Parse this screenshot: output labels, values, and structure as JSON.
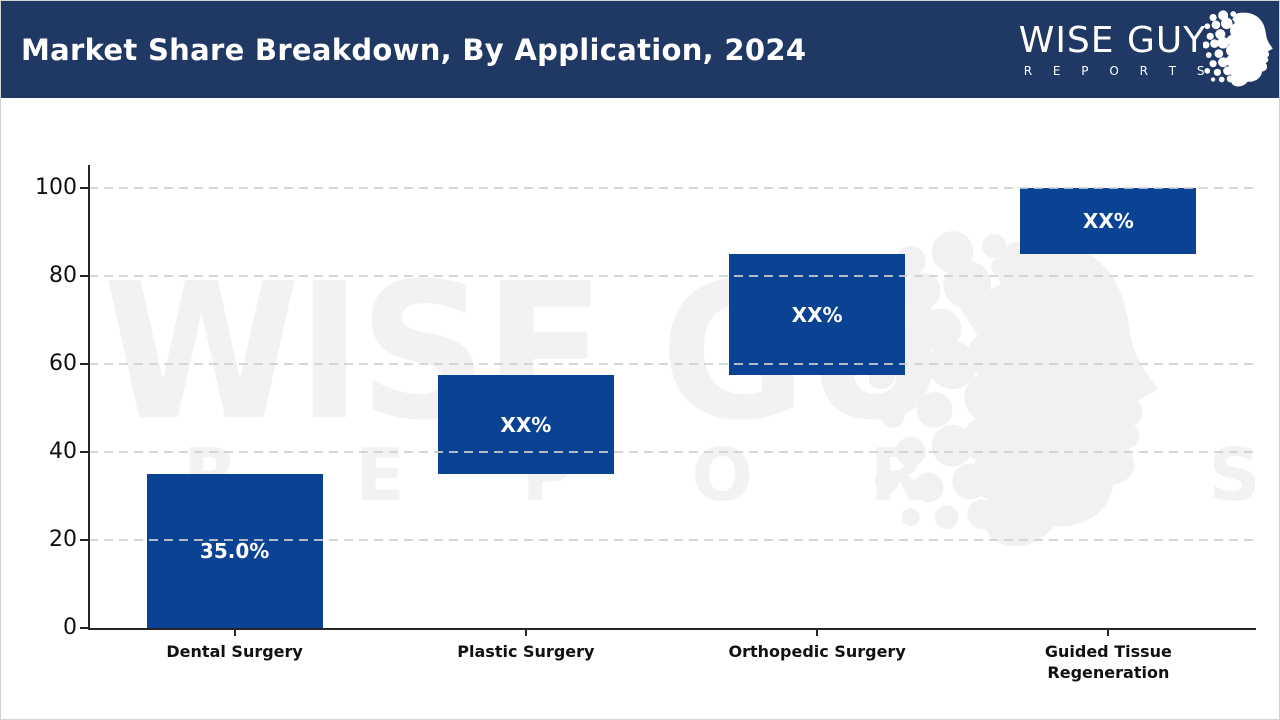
{
  "page": {
    "background": "#ffffff",
    "border_color": "#d3d3d3"
  },
  "header": {
    "background": "#1f3864",
    "title": "Market Share Breakdown, By Application, 2024",
    "title_color": "#ffffff",
    "logo": {
      "wordmark": "WISE GUY",
      "subtext": "R E P O R T S",
      "icon": "dotted-head-profile-icon",
      "color": "#ffffff"
    }
  },
  "watermark": {
    "wordmark": "WISE GUY",
    "subtext": "R E P O R T S",
    "icon": "dotted-head-profile-icon",
    "color": "#f2f2f2"
  },
  "chart_data": {
    "type": "bar",
    "subtype": "waterfall",
    "title": "Market Share Breakdown, By Application, 2024",
    "categories": [
      "Dental Surgery",
      "Plastic Surgery",
      "Orthopedic Surgery",
      "Guided Tissue\nRegeneration"
    ],
    "segments": [
      {
        "category": "Dental Surgery",
        "label": "35.0%",
        "start": 0,
        "end": 35.0,
        "value": 35.0
      },
      {
        "category": "Plastic Surgery",
        "label": "XX%",
        "start": 35.0,
        "end": 57.5,
        "value": 22.5
      },
      {
        "category": "Orthopedic Surgery",
        "label": "XX%",
        "start": 57.5,
        "end": 85.0,
        "value": 27.5
      },
      {
        "category": "Guided Tissue Regeneration",
        "label": "XX%",
        "start": 85.0,
        "end": 100.0,
        "value": 15.0
      }
    ],
    "xlabel": "",
    "ylabel": "",
    "yticks": [
      0,
      20,
      40,
      60,
      80,
      100
    ],
    "ylim": [
      0,
      105
    ],
    "grid": {
      "horizontal": true,
      "style": "dashed",
      "color": "#d9d9d9",
      "drawn_over_bars": true
    },
    "legend": "none",
    "bar_color": "#0a4294",
    "bar_label_color": "#ffffff",
    "axis_color": "#262626",
    "tick_label_color": "#111111"
  }
}
